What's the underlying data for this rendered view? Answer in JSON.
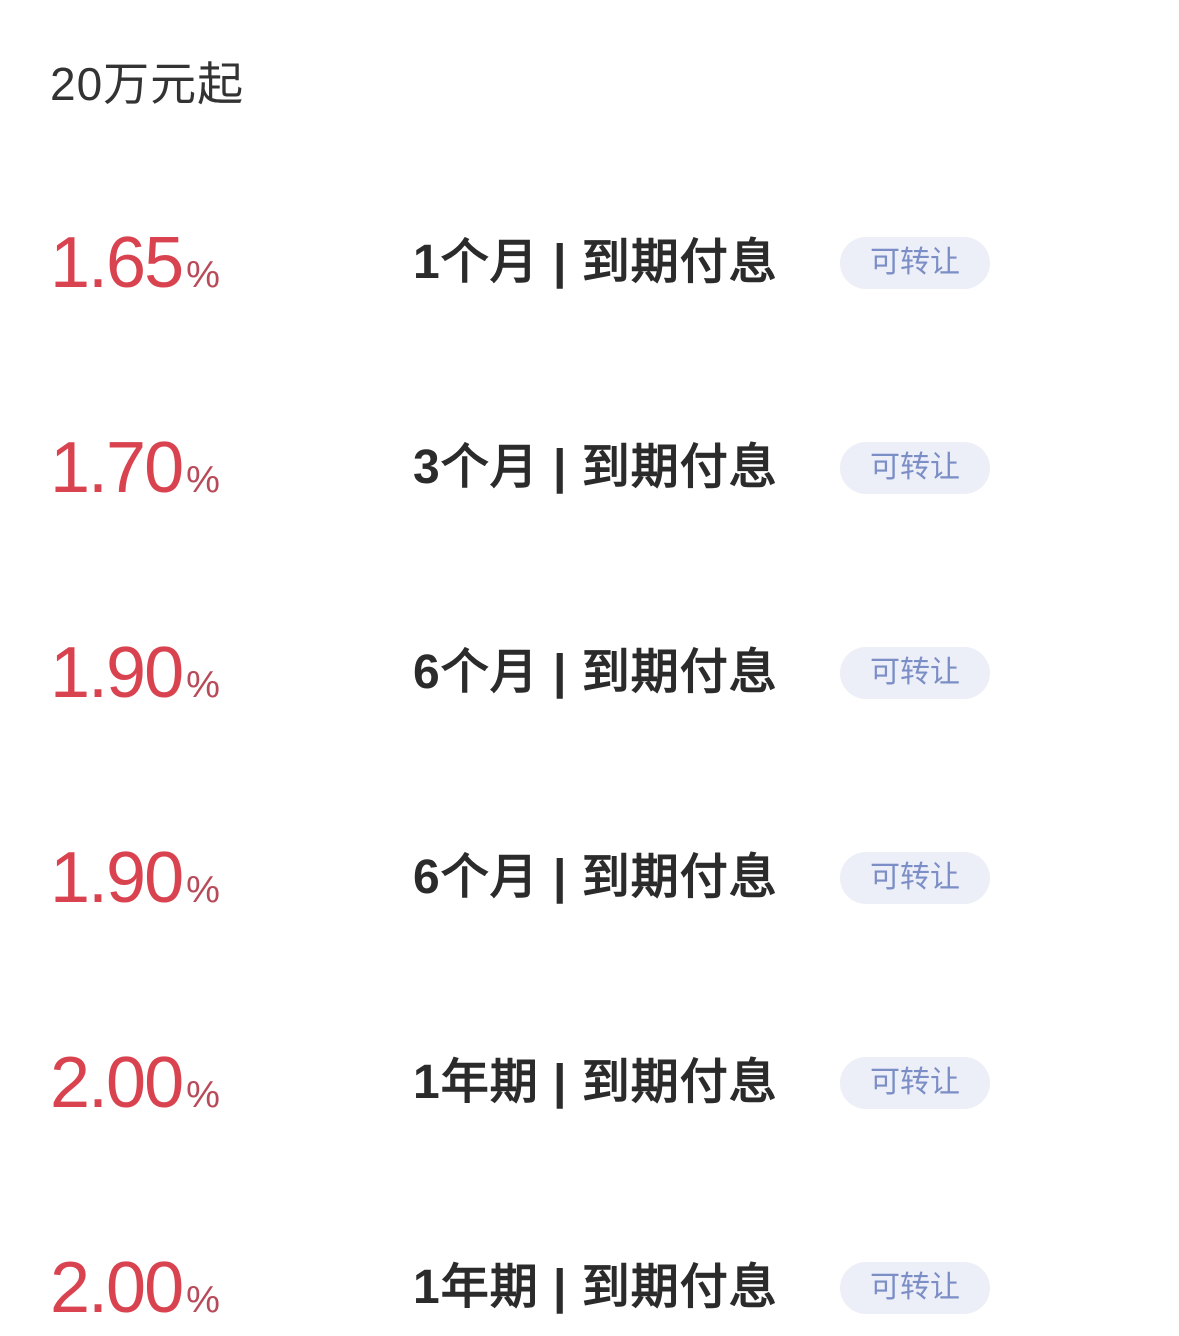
{
  "header": {
    "title": "20万元起"
  },
  "colors": {
    "background": "#ffffff",
    "header_text": "#333333",
    "rate_red": "#d9434f",
    "percent_red": "#b84b59",
    "term_text": "#2b2b2b",
    "badge_bg": "#eceef8",
    "badge_text": "#7b8ec6"
  },
  "products": [
    {
      "rate": "1.65",
      "unit": "%",
      "term": "1个月 | 到期付息",
      "badge": "可转让"
    },
    {
      "rate": "1.70",
      "unit": "%",
      "term": "3个月 | 到期付息",
      "badge": "可转让"
    },
    {
      "rate": "1.90",
      "unit": "%",
      "term": "6个月 | 到期付息",
      "badge": "可转让"
    },
    {
      "rate": "1.90",
      "unit": "%",
      "term": "6个月 | 到期付息",
      "badge": "可转让"
    },
    {
      "rate": "2.00",
      "unit": "%",
      "term": "1年期 | 到期付息",
      "badge": "可转让"
    },
    {
      "rate": "2.00",
      "unit": "%",
      "term": "1年期 | 到期付息",
      "badge": "可转让"
    }
  ]
}
